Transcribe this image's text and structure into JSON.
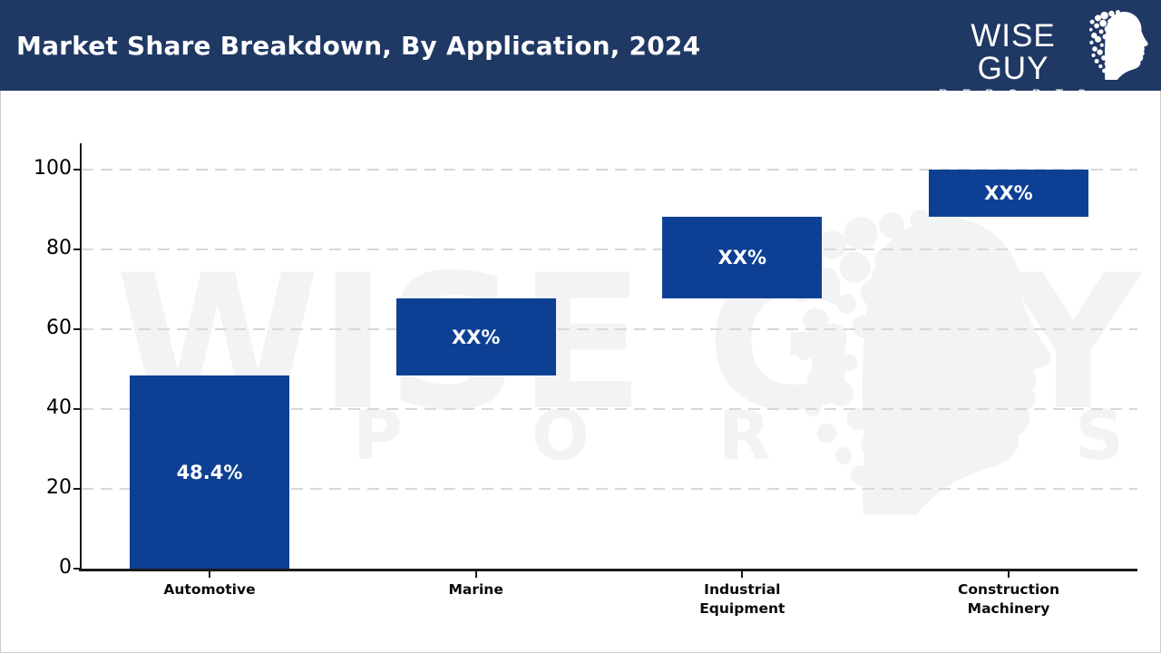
{
  "header": {
    "title": "Market Share Breakdown, By Application, 2024",
    "logo": {
      "line1": "WISE GUY",
      "line2": "R E P O R T S"
    }
  },
  "watermark": {
    "line1": "WISE GUY",
    "line2": "P O R T S"
  },
  "colors": {
    "header_bg": "#1f3864",
    "bar": "#0d4094",
    "bar_label": "#ffffff",
    "gridline": "#d8d8d8",
    "axis": "#1a1a1a",
    "watermark": "#f2f3f5"
  },
  "chart_data": {
    "type": "bar",
    "subtype": "waterfall",
    "title": "Market Share Breakdown, By Application, 2024",
    "categories": [
      "Automotive",
      "Marine",
      "Industrial\nEquipment",
      "Construction\nMachinery"
    ],
    "series": [
      {
        "name": "Market Share",
        "segments": [
          {
            "category": "Automotive",
            "start": 0,
            "end": 48.4,
            "value": 48.4,
            "label": "48.4%"
          },
          {
            "category": "Marine",
            "start": 48.4,
            "end": 67.7,
            "value": 19.3,
            "label": "XX%"
          },
          {
            "category": "Industrial Equipment",
            "start": 67.7,
            "end": 88.2,
            "value": 20.5,
            "label": "XX%"
          },
          {
            "category": "Construction Machinery",
            "start": 88.2,
            "end": 100,
            "value": 11.8,
            "label": "XX%"
          }
        ]
      }
    ],
    "xlabel": "",
    "ylabel": "",
    "ylim": [
      0,
      100
    ],
    "yticks": [
      0,
      20,
      40,
      60,
      80,
      100
    ],
    "grid": "horizontal-dashed",
    "legend": "none"
  }
}
